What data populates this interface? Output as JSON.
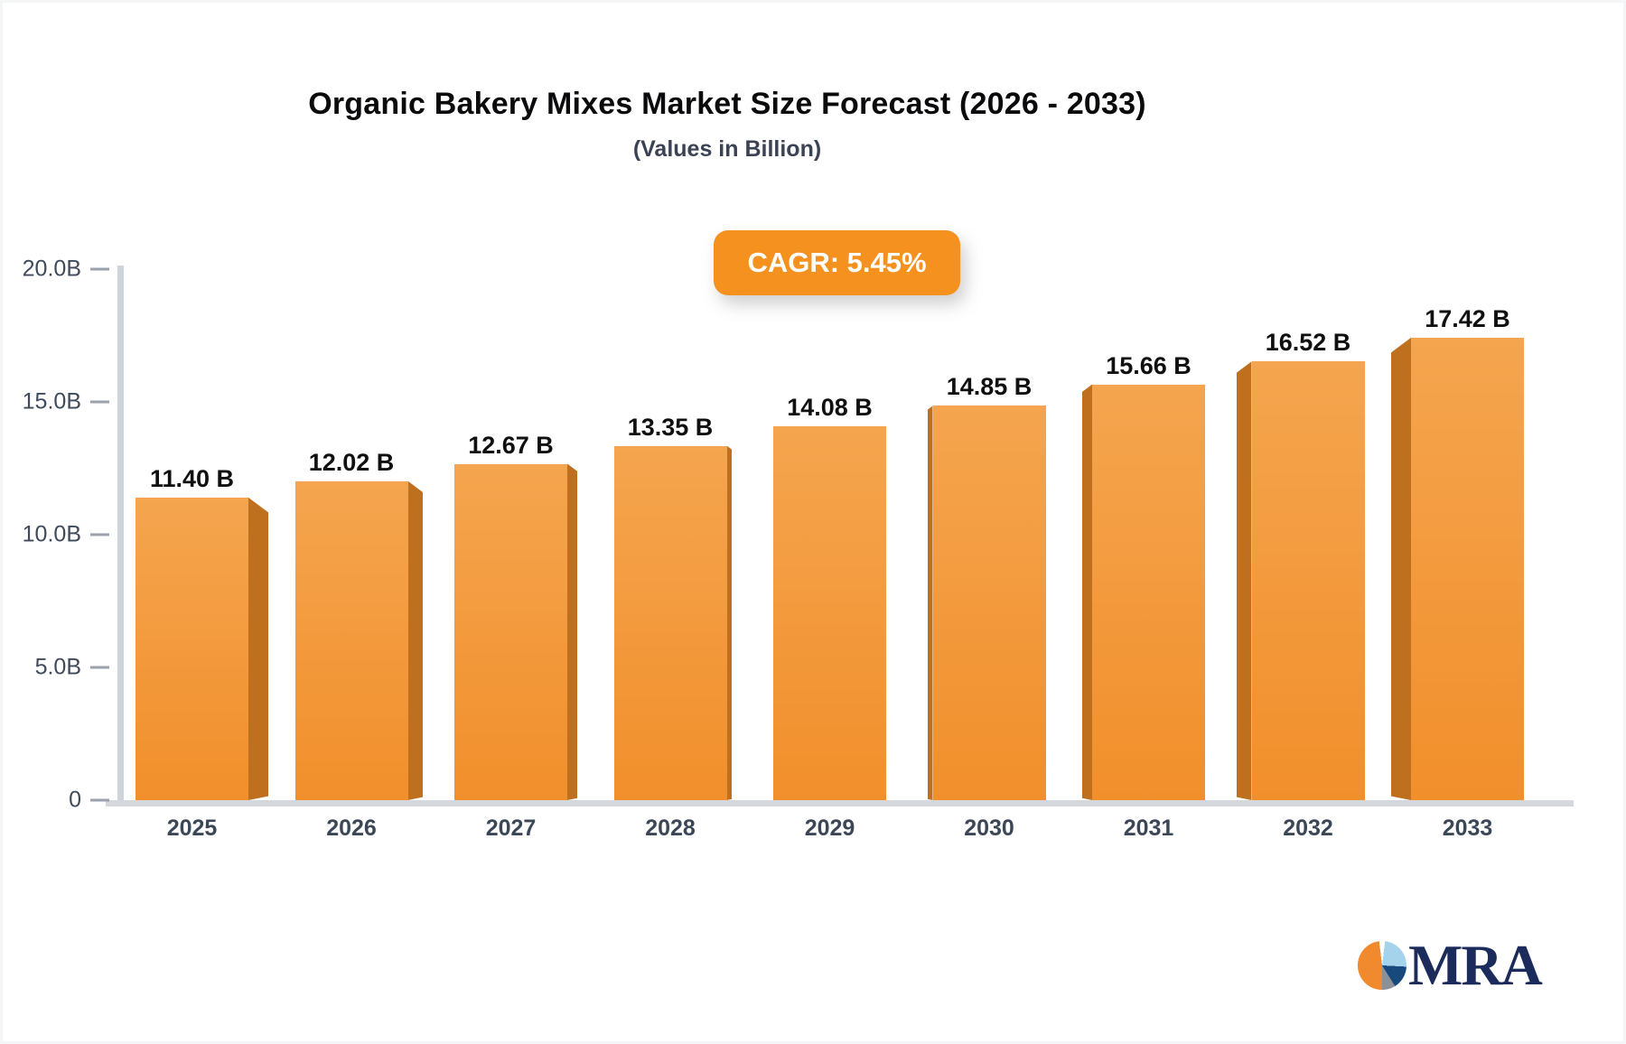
{
  "header": {
    "title": "Organic Bakery Mixes Market Size Forecast (2026 - 2033)",
    "subtitle": "(Values in Billion)",
    "cagr_label": "CAGR: 5.45%"
  },
  "logo": {
    "text": "MRA"
  },
  "colors": {
    "bar_face_top": "#F5A54F",
    "bar_face_bottom": "#F18F2B",
    "bar_side": "#BE701F",
    "badge_bg": "#F5921F",
    "axis_line": "#D2D6DC",
    "tick_label": "#3F4A5B",
    "year_label": "#3B4757",
    "value_label": "#101010",
    "logo_navy": "#1B2B5B",
    "logo_orange": "#F18A2E",
    "logo_lightblue": "#A5D3EC",
    "logo_darkblue": "#17497C",
    "logo_gray": "#8D9095"
  },
  "chart_data": {
    "type": "bar",
    "title": "Organic Bakery Mixes Market Size Forecast (2026 - 2033)",
    "subtitle": "(Values in Billion)",
    "cagr_percent": 5.45,
    "unit": "Billion USD",
    "categories": [
      "2025",
      "2026",
      "2027",
      "2028",
      "2029",
      "2030",
      "2031",
      "2032",
      "2033"
    ],
    "values": [
      11.4,
      12.02,
      12.67,
      13.35,
      14.08,
      14.85,
      15.66,
      16.52,
      17.42
    ],
    "value_labels": [
      "11.40 B",
      "12.02 B",
      "12.67 B",
      "13.35 B",
      "14.08 B",
      "14.85 B",
      "15.66 B",
      "16.52 B",
      "17.42 B"
    ],
    "xlabel": "",
    "ylabel": "",
    "ylim": [
      0,
      20
    ],
    "y_ticks": [
      {
        "label": "20.0B",
        "value": 20
      },
      {
        "label": "15.0B",
        "value": 15
      },
      {
        "label": "10.0B",
        "value": 10
      },
      {
        "label": "5.0B",
        "value": 5
      },
      {
        "label": "0",
        "value": 0
      }
    ],
    "grid": false,
    "legend": false,
    "style": "3d-center-perspective"
  }
}
